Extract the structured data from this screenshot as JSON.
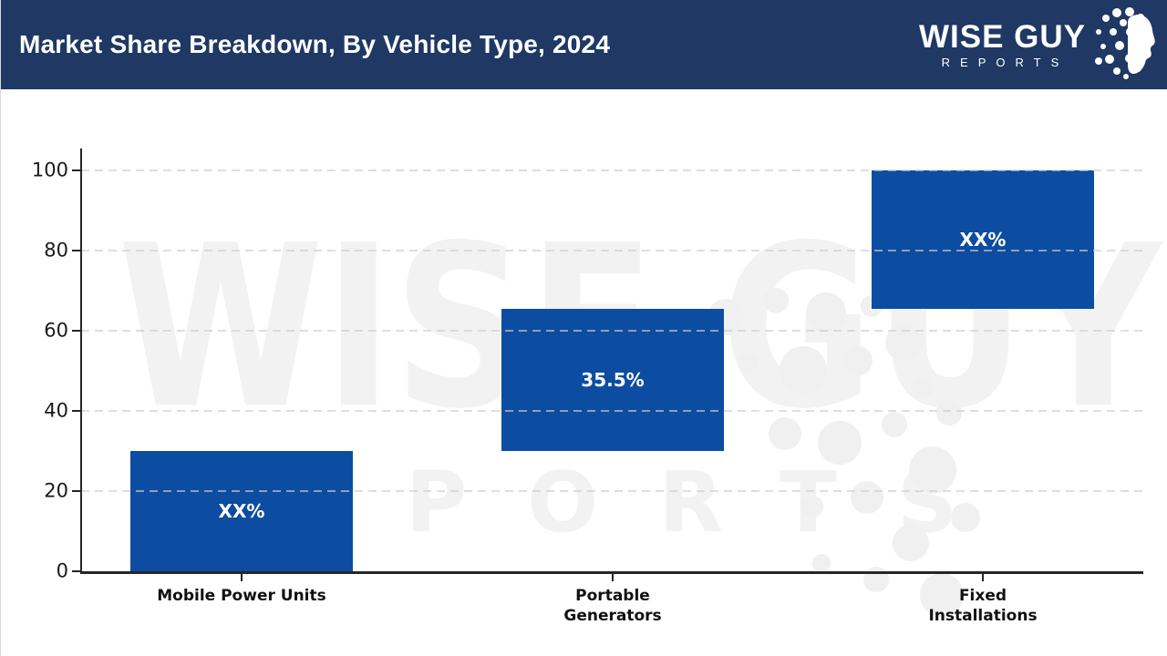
{
  "header": {
    "title": "Market Share Breakdown, By Vehicle Type, 2024",
    "logo": {
      "line1": "WISE GUY",
      "line2": "REPORTS"
    }
  },
  "watermark": {
    "line1": "WISE GUY",
    "line2": "REPORTS"
  },
  "colors": {
    "header_bg": "#1f3864",
    "bar": "#0d4da1",
    "grid": "#d9d9d9",
    "axis": "#262626",
    "bar_label_text": "#ffffff",
    "watermark_text": "#f2f2f2"
  },
  "chart_data": {
    "type": "bar",
    "subtype": "floating-waterfall-segments",
    "title": "Market Share Breakdown, By Vehicle Type, 2024",
    "categories": [
      "Mobile Power Units",
      "Portable Generators",
      "Fixed Installations"
    ],
    "category_lines": [
      [
        "Mobile Power Units"
      ],
      [
        "Portable",
        "Generators"
      ],
      [
        "Fixed",
        "Installations"
      ]
    ],
    "series": [
      {
        "name": "Market Share %",
        "segments": [
          {
            "category": "Mobile Power Units",
            "base": 0,
            "top": 30,
            "label": "XX%"
          },
          {
            "category": "Portable Generators",
            "base": 30,
            "top": 65.5,
            "label": "35.5%"
          },
          {
            "category": "Fixed Installations",
            "base": 65.5,
            "top": 100,
            "label": "XX%"
          }
        ]
      }
    ],
    "xlabel": "",
    "ylabel": "",
    "ylim": [
      0,
      100
    ],
    "yticks": [
      0,
      20,
      40,
      60,
      80,
      100
    ],
    "grid": "horizontal-dashed",
    "legend": "none"
  }
}
